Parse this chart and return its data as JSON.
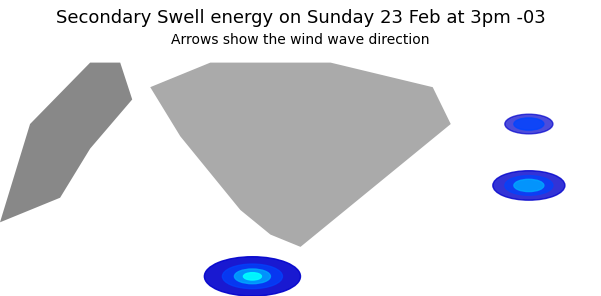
{
  "title": "Secondary Swell energy on Sunday 23 Feb at 3pm -03",
  "subtitle": "Arrows show the wind wave direction",
  "title_fontsize": 13,
  "subtitle_fontsize": 10,
  "bg_color": "#000000",
  "title_bg": "#ffffff",
  "map_bg": "#000000",
  "greenland_color": "#aaaaaa",
  "land_color": "#888888",
  "swell_colors": [
    "#0000ff",
    "#00aaff",
    "#00ffff"
  ],
  "figsize": [
    6.01,
    2.96
  ],
  "dpi": 100
}
